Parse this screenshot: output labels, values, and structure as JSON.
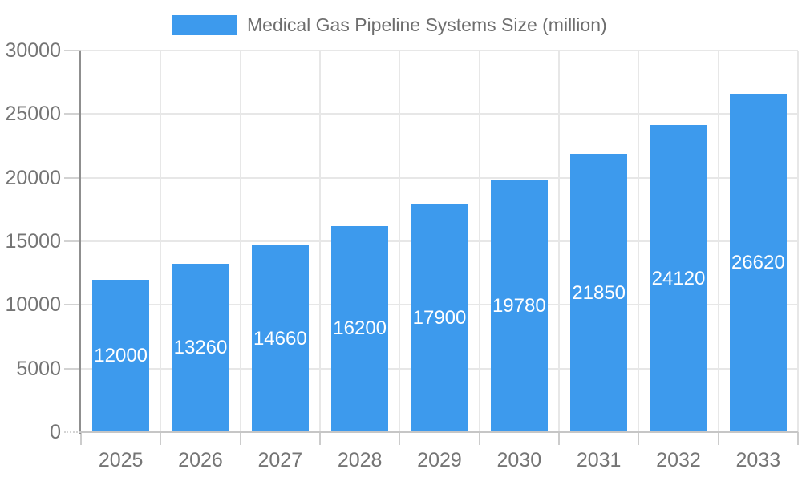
{
  "chart_data": {
    "type": "bar",
    "title": "Medical Gas Pipeline Systems Size (million)",
    "categories": [
      "2025",
      "2026",
      "2027",
      "2028",
      "2029",
      "2030",
      "2031",
      "2032",
      "2033"
    ],
    "values": [
      12000,
      13260,
      14660,
      16200,
      17900,
      19780,
      21850,
      24120,
      26620
    ],
    "xlabel": "",
    "ylabel": "",
    "ylim": [
      0,
      30000
    ],
    "ytick_step": 5000,
    "ytick_labels": [
      "0",
      "5000",
      "10000",
      "15000",
      "20000",
      "25000",
      "30000"
    ],
    "grid": "on",
    "legend_position": "top-center",
    "bar_color": "#3d9aed",
    "bar_label_color": "#ffffff",
    "axis_text_color": "#757575",
    "legend_text_color": "#6e6e6e"
  }
}
